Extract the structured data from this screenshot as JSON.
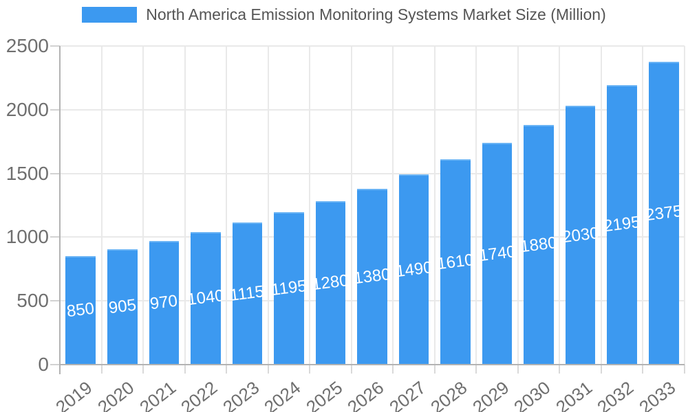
{
  "legend": {
    "label": "North America Emission Monitoring Systems Market Size (Million)"
  },
  "chart_data": {
    "type": "bar",
    "title": "North America Emission Monitoring Systems Market Size (Million)",
    "categories": [
      "2019",
      "2020",
      "2021",
      "2022",
      "2023",
      "2024",
      "2025",
      "2026",
      "2027",
      "2028",
      "2029",
      "2030",
      "2031",
      "2032",
      "2033"
    ],
    "values": [
      850,
      905,
      970,
      1040,
      1115,
      1195,
      1280,
      1380,
      1490,
      1610,
      1740,
      1880,
      2030,
      2195,
      2375
    ],
    "series_name": "North America Emission Monitoring Systems Market Size (Million)",
    "xlabel": "",
    "ylabel": "",
    "ylim": [
      0,
      2500
    ],
    "ytick_labels": [
      "0",
      "500",
      "1000",
      "1500",
      "2000",
      "2500"
    ],
    "grid": "on",
    "legend_position": "top-center",
    "bar_labels_visible": true,
    "colors": {
      "bar": "#3c99f0",
      "bar_border": "#6ab4f5",
      "bar_label_text": "#ffffff",
      "grid": "#e9e9e9",
      "axis": "#b3b3b3",
      "tick_text": "#6f6f6f",
      "legend_text": "#555555",
      "background": "#ffffff"
    }
  }
}
